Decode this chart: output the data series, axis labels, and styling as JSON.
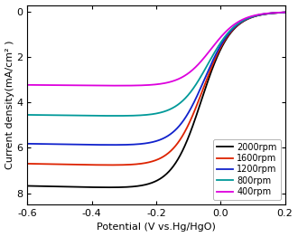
{
  "title": "",
  "xlabel": "Potential (V vs.Hg/HgO)",
  "ylabel": "Current density(mA/cm² )",
  "xlim": [
    -0.6,
    0.2
  ],
  "ylim": [
    -8.5,
    0.3
  ],
  "yticks": [
    0,
    -2,
    -4,
    -6,
    -8
  ],
  "ytick_labels": [
    "0",
    "2",
    "4",
    "6",
    "8"
  ],
  "xticks": [
    -0.6,
    -0.4,
    -0.2,
    0.0,
    0.2
  ],
  "xtick_labels": [
    "-0.6",
    "-0.4",
    "-0.2",
    "0.0",
    "0.2"
  ],
  "series": [
    {
      "label": "2000rpm",
      "color": "#000000",
      "ilim": -7.85,
      "E_half": -0.06,
      "k1": 22,
      "k2": 10
    },
    {
      "label": "1600rpm",
      "color": "#dd2200",
      "ilim": -6.85,
      "E_half": -0.055,
      "k1": 22,
      "k2": 10
    },
    {
      "label": "1200rpm",
      "color": "#1122cc",
      "ilim": -5.95,
      "E_half": -0.05,
      "k1": 22,
      "k2": 10
    },
    {
      "label": "800rpm",
      "color": "#009999",
      "ilim": -4.65,
      "E_half": -0.04,
      "k1": 22,
      "k2": 10
    },
    {
      "label": "400rpm",
      "color": "#dd00dd",
      "ilim": -3.3,
      "E_half": -0.03,
      "k1": 22,
      "k2": 10
    }
  ],
  "background_color": "#ffffff",
  "legend_loc": "lower right",
  "figsize": [
    3.3,
    2.62
  ],
  "dpi": 100
}
